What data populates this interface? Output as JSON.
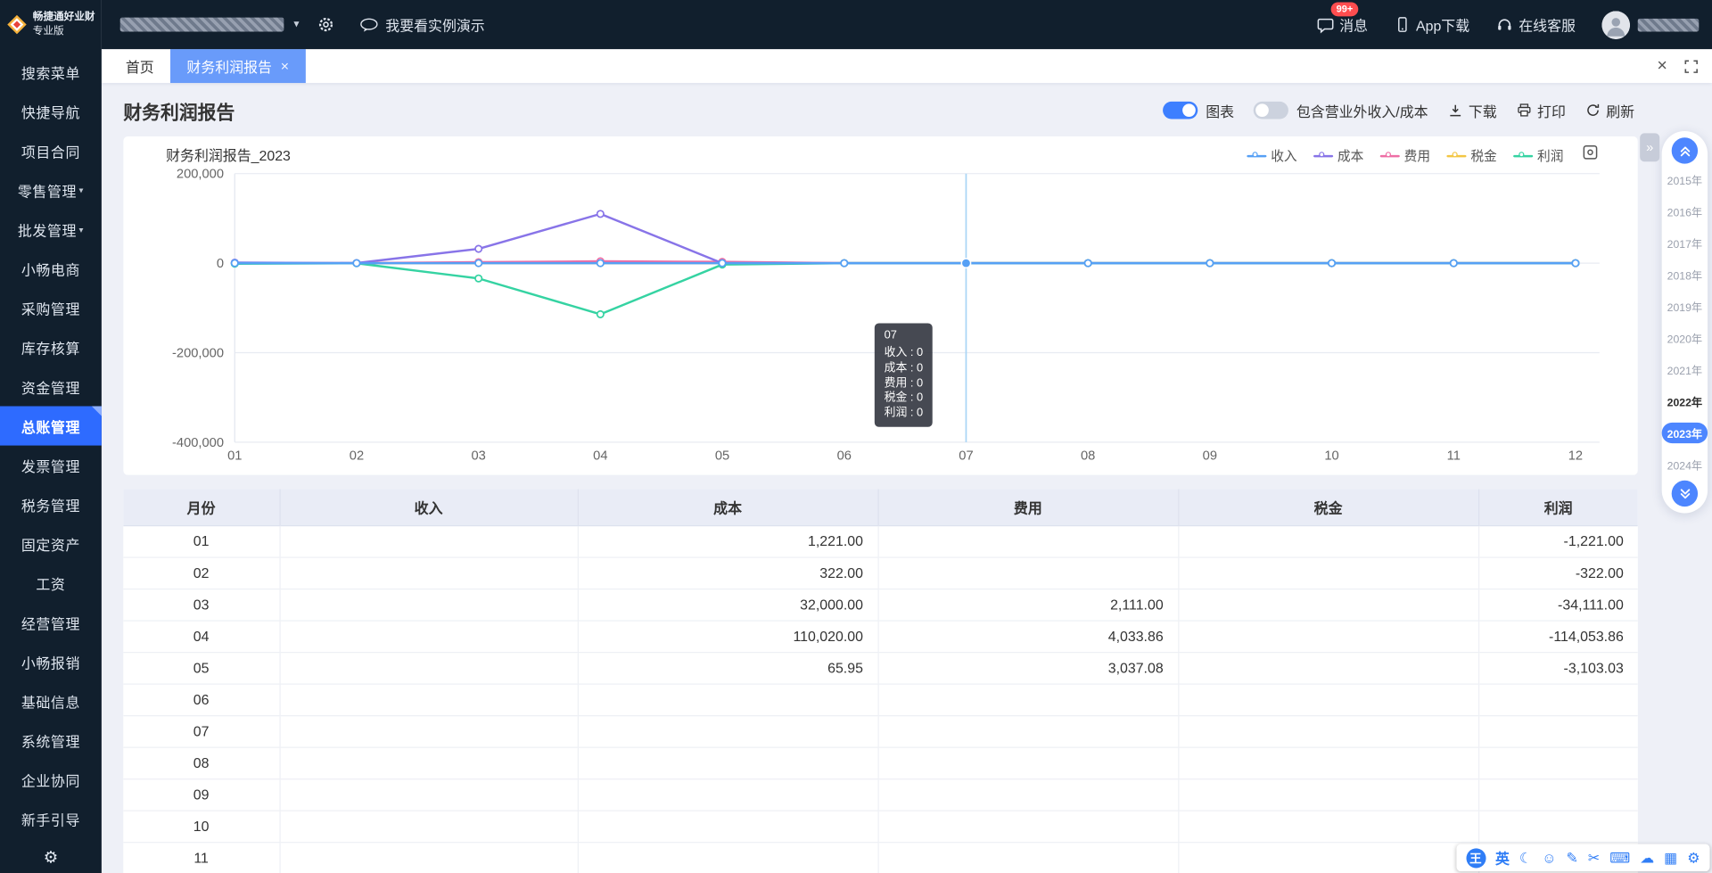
{
  "app": {
    "logo_title": "畅捷通好业财",
    "logo_subtitle": "专业版"
  },
  "topbar": {
    "org_selector_value": "",
    "demo_label": "我要看实例演示",
    "messages": {
      "label": "消息",
      "badge": "99+"
    },
    "app_download_label": "App下载",
    "support_label": "在线客服",
    "user_name": ""
  },
  "tab_bar": {
    "tabs": [
      {
        "label": "首页",
        "active": false,
        "closable": false
      },
      {
        "label": "财务利润报告",
        "active": true,
        "closable": true
      }
    ]
  },
  "sidebar": {
    "items": [
      {
        "label": "搜索菜单"
      },
      {
        "label": "快捷导航"
      },
      {
        "label": "项目合同"
      },
      {
        "label": "零售管理",
        "expandable": true
      },
      {
        "label": "批发管理",
        "expandable": true
      },
      {
        "label": "小畅电商"
      },
      {
        "label": "采购管理"
      },
      {
        "label": "库存核算"
      },
      {
        "label": "资金管理"
      },
      {
        "label": "总账管理",
        "active": true
      },
      {
        "label": "发票管理"
      },
      {
        "label": "税务管理"
      },
      {
        "label": "固定资产"
      },
      {
        "label": "工资"
      },
      {
        "label": "经营管理"
      },
      {
        "label": "小畅报销"
      },
      {
        "label": "基础信息"
      },
      {
        "label": "系统管理"
      },
      {
        "label": "企业协同"
      },
      {
        "label": "新手引导"
      }
    ]
  },
  "page": {
    "title": "财务利润报告",
    "chart_toggle_label": "图表",
    "chart_toggle_on": true,
    "include_toggle_label": "包含营业外收入/成本",
    "include_toggle_on": false,
    "download_label": "下载",
    "print_label": "打印",
    "refresh_label": "刷新"
  },
  "chart_data": {
    "type": "line",
    "title": "财务利润报告_2023",
    "x": [
      "01",
      "02",
      "03",
      "04",
      "05",
      "06",
      "07",
      "08",
      "09",
      "10",
      "11",
      "12"
    ],
    "ylim": [
      -400000,
      200000
    ],
    "yticks": [
      {
        "value": 200000,
        "label": "200,000"
      },
      {
        "value": 0,
        "label": "0"
      },
      {
        "value": -200000,
        "label": "-200,000"
      },
      {
        "value": -400000,
        "label": "-400,000"
      }
    ],
    "grid": true,
    "legend_position": "top-right",
    "series": [
      {
        "name": "收入",
        "color": "#56a0f5",
        "values": [
          0,
          0,
          0,
          0,
          0,
          0,
          0,
          0,
          0,
          0,
          0,
          0
        ]
      },
      {
        "name": "成本",
        "color": "#8874e8",
        "values": [
          1221,
          322,
          32000,
          110020,
          65.95,
          0,
          0,
          0,
          0,
          0,
          0,
          0
        ]
      },
      {
        "name": "费用",
        "color": "#ee6ea5",
        "values": [
          0,
          0,
          2111,
          4033.86,
          3037.08,
          0,
          0,
          0,
          0,
          0,
          0,
          0
        ]
      },
      {
        "name": "税金",
        "color": "#f3c644",
        "values": [
          0,
          0,
          0,
          0,
          0,
          0,
          0,
          0,
          0,
          0,
          0,
          0
        ]
      },
      {
        "name": "利润",
        "color": "#35d3a2",
        "values": [
          -1221,
          -322,
          -34111,
          -114053.86,
          -3103.03,
          0,
          0,
          0,
          0,
          0,
          0,
          0
        ]
      }
    ],
    "selected": {
      "series": "收入",
      "x_index": 6
    },
    "tooltip": {
      "title": "07",
      "lines": [
        "收入 : 0",
        "成本 : 0",
        "费用 : 0",
        "税金 : 0",
        "利润 : 0"
      ]
    }
  },
  "table": {
    "headers": [
      "月份",
      "收入",
      "成本",
      "费用",
      "税金",
      "利润"
    ],
    "rows": [
      [
        "01",
        "",
        "1,221.00",
        "",
        "",
        "-1,221.00"
      ],
      [
        "02",
        "",
        "322.00",
        "",
        "",
        "-322.00"
      ],
      [
        "03",
        "",
        "32,000.00",
        "2,111.00",
        "",
        "-34,111.00"
      ],
      [
        "04",
        "",
        "110,020.00",
        "4,033.86",
        "",
        "-114,053.86"
      ],
      [
        "05",
        "",
        "65.95",
        "3,037.08",
        "",
        "-3,103.03"
      ],
      [
        "06",
        "",
        "",
        "",
        "",
        ""
      ],
      [
        "07",
        "",
        "",
        "",
        "",
        ""
      ],
      [
        "08",
        "",
        "",
        "",
        "",
        ""
      ],
      [
        "09",
        "",
        "",
        "",
        "",
        ""
      ],
      [
        "10",
        "",
        "",
        "",
        "",
        ""
      ],
      [
        "11",
        "",
        "",
        "",
        "",
        ""
      ]
    ]
  },
  "year_panel": {
    "years": [
      "2015年",
      "2016年",
      "2017年",
      "2018年",
      "2019年",
      "2020年",
      "2021年",
      "2022年",
      "2023年",
      "2024年"
    ],
    "active_year": "2023年"
  },
  "ime_bar": {
    "logo": "王",
    "lang": "英"
  },
  "colors": {
    "accent": "#2e6bff",
    "sidebar_bg": "#111f2d",
    "active_tab_bg": "#699bfa",
    "badge_red": "#ff4d4f",
    "page_bg": "#eef0f7",
    "crosshair": "#a9d5f6"
  }
}
